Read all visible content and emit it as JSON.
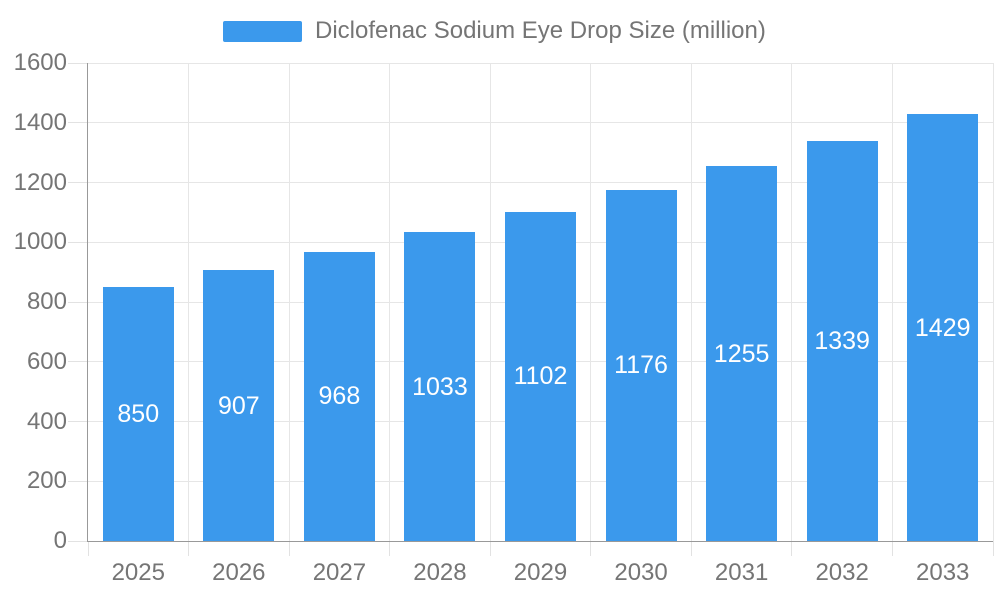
{
  "legend": {
    "label": "Diclofenac Sodium Eye Drop Size (million)"
  },
  "chart_data": {
    "type": "bar",
    "title": "Diclofenac Sodium Eye Drop Size (million)",
    "series_name": "Diclofenac Sodium Eye Drop Size (million)",
    "categories": [
      "2025",
      "2026",
      "2027",
      "2028",
      "2029",
      "2030",
      "2031",
      "2032",
      "2033"
    ],
    "values": [
      850,
      907,
      968,
      1033,
      1102,
      1176,
      1255,
      1339,
      1429
    ],
    "xlabel": "",
    "ylabel": "",
    "ylim": [
      0,
      1600
    ],
    "yticks": [
      0,
      200,
      400,
      600,
      800,
      1000,
      1200,
      1400,
      1600
    ],
    "grid": true,
    "legend_position": "top-center",
    "bar_label_position": "inside-center",
    "colors": {
      "bar": "#3b99ec",
      "bar_label": "#ffffff",
      "axis_text": "#757575",
      "axis_line": "#999999",
      "grid_line": "#e6e6e6",
      "tick_line": "#e2e2e2",
      "background": "#ffffff"
    }
  }
}
